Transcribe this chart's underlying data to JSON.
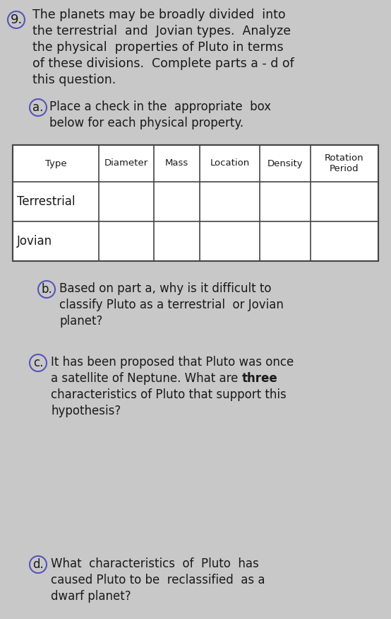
{
  "bg_color": "#c8c8c8",
  "question_number": "9.",
  "intro_lines": [
    "The planets may be broadly divided  into",
    "the terrestrial  and  Jovian types.  Analyze",
    "the physical  properties of Pluto in terms",
    "of these divisions.  Complete parts a - d of",
    "this question."
  ],
  "part_a_label": "a.",
  "part_a_lines": [
    "Place a check in the  appropriate  box",
    "below for each physical property."
  ],
  "table_headers": [
    "Type",
    "Diameter",
    "Mass",
    "Location",
    "Density",
    "Rotation\nPeriod"
  ],
  "table_rows": [
    "Terrestrial",
    "Jovian"
  ],
  "part_b_label": "b.",
  "part_b_lines": [
    "Based on part a, why is it difficult to",
    "classify Pluto as a terrestrial  or Jovian",
    "planet?"
  ],
  "part_c_label": "c.",
  "part_c_line1": "It has been proposed that Pluto was once",
  "part_c_line2_pre": "a satellite of Neptune. What are ",
  "part_c_line2_bold": "three",
  "part_c_line3": "characteristics of Pluto that support this",
  "part_c_line4": "hypothesis?",
  "part_d_label": "d.",
  "part_d_lines": [
    "What  characteristics  of  Pluto  has",
    "caused Pluto to be  reclassified  as a",
    "dwarf planet?"
  ],
  "circle_color": "#5555bb",
  "text_color": "#1a1a1a",
  "table_line_color": "#444444",
  "table_bg": "#e8e8e8",
  "font_size_intro": 12.5,
  "font_size_parts": 12.0,
  "font_size_table_header": 9.5,
  "font_size_table_row": 12.0
}
